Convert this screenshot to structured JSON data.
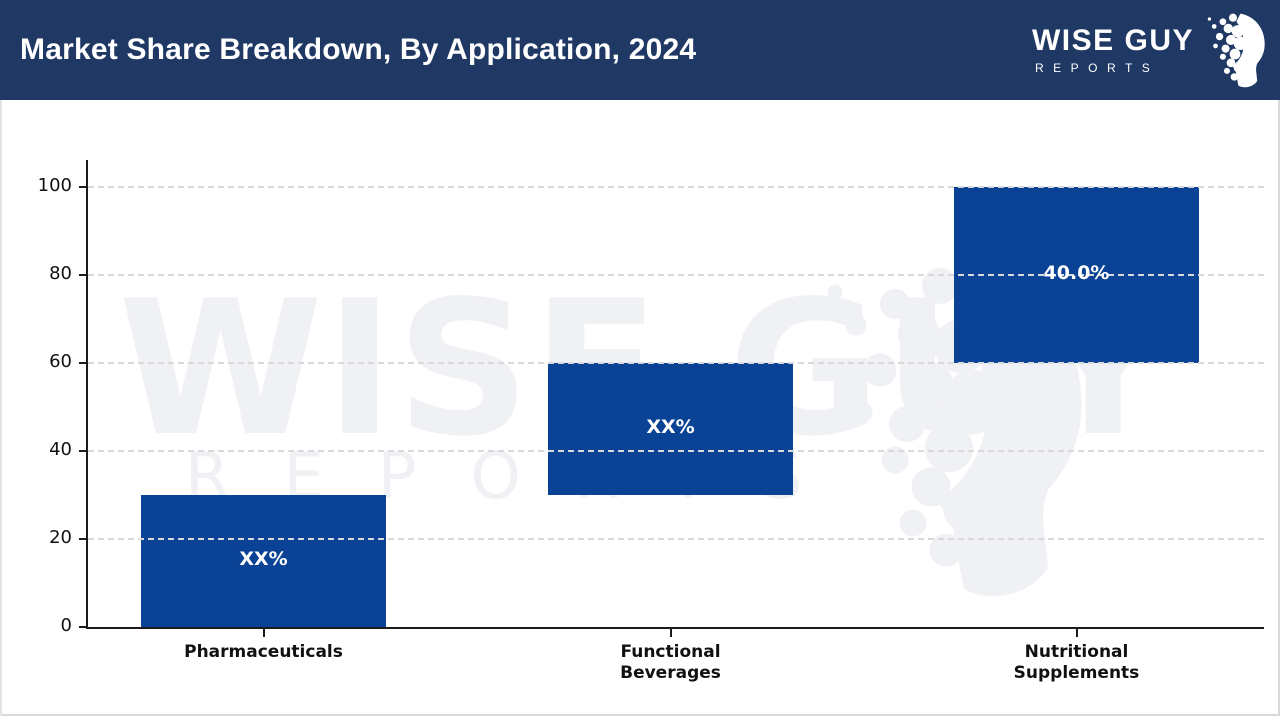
{
  "header": {
    "title": "Market Share Breakdown, By Application, 2024",
    "bg_color": "#1f3864",
    "logo": {
      "line1": "WISE GUY",
      "line2": "REPORTS"
    }
  },
  "chart_data": {
    "type": "bar",
    "subtype": "floating-waterfall",
    "title": "Market Share Breakdown, By Application, 2024",
    "categories": [
      "Pharmaceuticals",
      "Functional Beverages",
      "Nutritional Supplements"
    ],
    "category_label_lines": [
      [
        "Pharmaceuticals"
      ],
      [
        "Functional",
        "Beverages"
      ],
      [
        "Nutritional",
        "Supplements"
      ]
    ],
    "bars": [
      {
        "category": "Pharmaceuticals",
        "base": 0,
        "top": 30,
        "label": "XX%"
      },
      {
        "category": "Functional Beverages",
        "base": 30,
        "top": 60,
        "label": "XX%"
      },
      {
        "category": "Nutritional Supplements",
        "base": 60,
        "top": 100,
        "label": "40.0%"
      }
    ],
    "yticks": [
      "0",
      "20",
      "40",
      "60",
      "80",
      "100"
    ],
    "ylim": [
      0,
      106
    ],
    "xlabel": "",
    "ylabel": "",
    "legend": "none",
    "grid": "horizontal-dashed",
    "bar_color": "#0a4296",
    "grid_color": "#d9d9d9",
    "axis_color": "#1b1b1b",
    "watermark_line1": "WISE GUY",
    "watermark_line2": "REPORTS"
  }
}
